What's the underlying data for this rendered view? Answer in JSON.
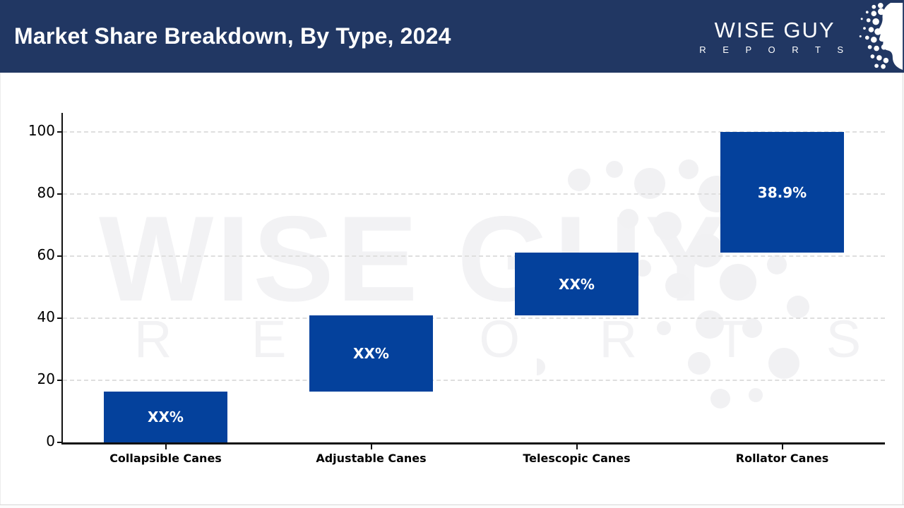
{
  "header": {
    "title": "Market Share Breakdown, By Type, 2024",
    "bg_color": "#213763",
    "logo": {
      "line1": "WISE GUY",
      "line2": "R E P O R T S"
    }
  },
  "watermark": {
    "line1": "WISE GUY",
    "line2": "R E P O R T S"
  },
  "chart_data": {
    "type": "bar",
    "subtype": "floating-waterfall-bars",
    "title": "Market Share Breakdown, By Type, 2024",
    "categories": [
      "Collapsible Canes",
      "Adjustable Canes",
      "Telescopic Canes",
      "Rollator Canes"
    ],
    "segments": [
      {
        "category": "Collapsible Canes",
        "start": 0,
        "end": 16.3,
        "label": "XX%"
      },
      {
        "category": "Adjustable Canes",
        "start": 16.3,
        "end": 40.9,
        "label": "XX%"
      },
      {
        "category": "Telescopic Canes",
        "start": 40.9,
        "end": 61.1,
        "label": "XX%"
      },
      {
        "category": "Rollator Canes",
        "start": 61.1,
        "end": 100,
        "label": "38.9%"
      }
    ],
    "ylim": [
      0,
      100
    ],
    "yticks": [
      0,
      20,
      40,
      60,
      80,
      100
    ],
    "xlabel": "",
    "ylabel": "",
    "grid": "horizontal-dashed",
    "legend": "none",
    "bar_color": "#04419c",
    "bar_label_color": "#ffffff"
  }
}
